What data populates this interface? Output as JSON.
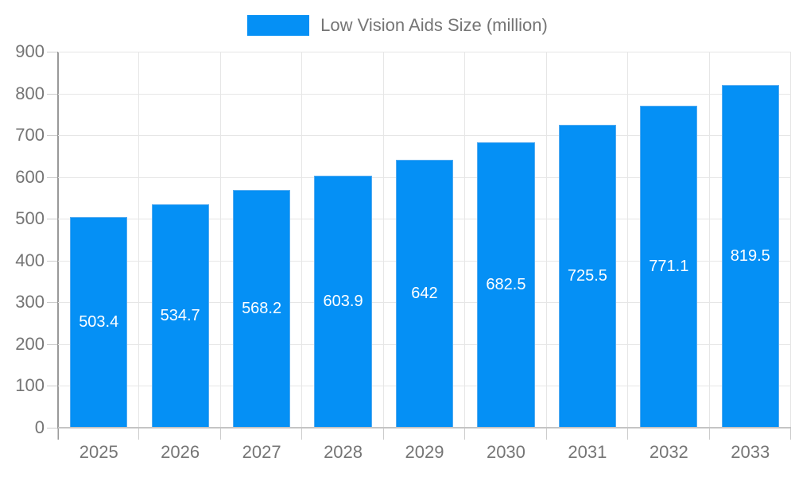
{
  "chart_data": {
    "type": "bar",
    "title": "Low Vision Aids Size (million)",
    "categories": [
      "2025",
      "2026",
      "2027",
      "2028",
      "2029",
      "2030",
      "2031",
      "2032",
      "2033"
    ],
    "series": [
      {
        "name": "Low Vision Aids Size (million)",
        "values": [
          503.4,
          534.7,
          568.2,
          603.9,
          642,
          682.5,
          725.5,
          771.1,
          819.5
        ]
      }
    ],
    "value_labels": [
      "503.4",
      "534.7",
      "568.2",
      "603.9",
      "642",
      "682.5",
      "725.5",
      "771.1",
      "819.5"
    ],
    "xlabel": "",
    "ylabel": "",
    "ylim": [
      0,
      900
    ],
    "yticks": [
      0,
      100,
      200,
      300,
      400,
      500,
      600,
      700,
      800,
      900
    ],
    "grid": true,
    "legend_position": "top-center",
    "value_label_position": "center-inside-bar",
    "colors": {
      "bar_fill": "#0590f5",
      "bar_border": "#54abf0",
      "grid_line": "#e6e6e6",
      "y_axis_line": "#999999",
      "zero_line": "#c4c4c4",
      "tick_color": "#cccccc",
      "axis_label_color": "#757575",
      "value_label_color": "#ffffff",
      "background": "#ffffff"
    }
  },
  "legend": {
    "label": "Low Vision Aids Size (million)"
  }
}
